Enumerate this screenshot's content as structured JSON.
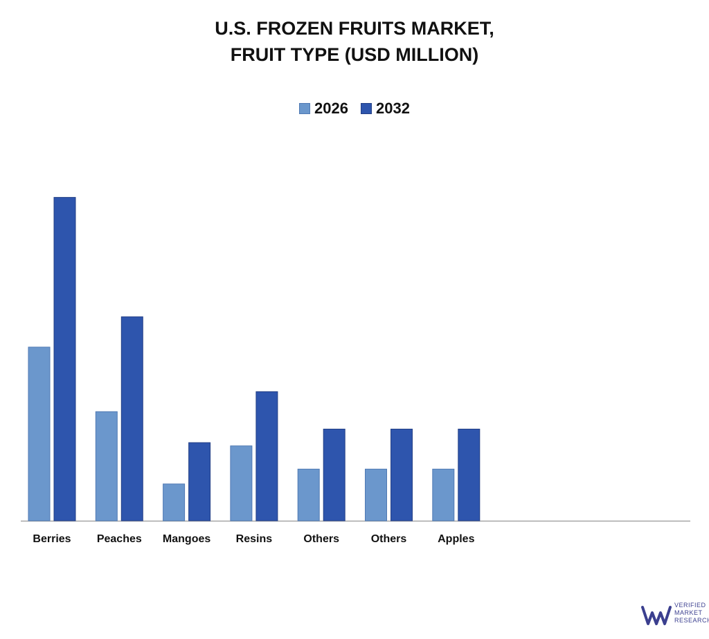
{
  "chart_data": {
    "type": "bar",
    "title_lines": [
      "U.S. FROZEN FRUITS MARKET,",
      "FRUIT TYPE (USD MILLION)"
    ],
    "categories": [
      "Berries",
      "Peaches",
      "Mangoes",
      "Resins",
      "Others",
      "Others",
      "Apples"
    ],
    "series": [
      {
        "name": "2026",
        "color": "#6b97cc",
        "values": [
          269,
          169,
          57,
          116,
          80,
          80,
          80
        ]
      },
      {
        "name": "2032",
        "color": "#2e55ad",
        "values": [
          501,
          316,
          121,
          200,
          142,
          142,
          142
        ]
      }
    ],
    "ylim": [
      0,
      600
    ],
    "grid": false,
    "legend_position": "top-center",
    "xlabel": "",
    "ylabel": ""
  },
  "logo": {
    "lines": [
      "VERIFIED",
      "MARKET",
      "RESEARCH"
    ],
    "color": "#3b3f8f"
  }
}
